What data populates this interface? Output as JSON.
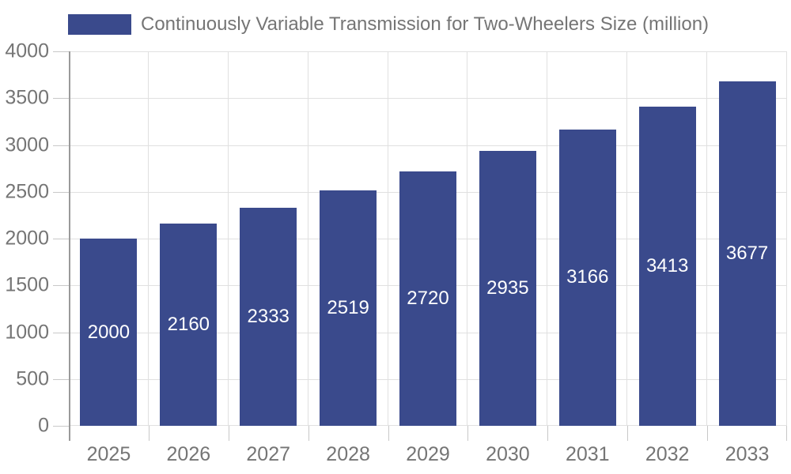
{
  "legend": {
    "label": "Continuously Variable Transmission for Two-Wheelers Size (million)"
  },
  "chart_data": {
    "type": "bar",
    "title": "Continuously Variable Transmission for Two-Wheelers Size (million)",
    "categories": [
      "2025",
      "2026",
      "2027",
      "2028",
      "2029",
      "2030",
      "2031",
      "2032",
      "2033"
    ],
    "values": [
      2000,
      2160,
      2333,
      2519,
      2720,
      2935,
      3166,
      3413,
      3677
    ],
    "xlabel": "",
    "ylabel": "",
    "ylim": [
      0,
      4000
    ],
    "yticks": [
      0,
      500,
      1000,
      1500,
      2000,
      2500,
      3000,
      3500,
      4000
    ],
    "grid": true,
    "legend_position": "top-left",
    "value_labels": "centered-inside-bars",
    "colors": {
      "bar": "#3A4A8C",
      "value_label": "#FFFFFF",
      "axis_label": "#757575",
      "grid": "#E0E0E0",
      "tick": "#C8C8C8",
      "axis_line": "#9A9A9A",
      "background": "#FFFFFF"
    }
  }
}
